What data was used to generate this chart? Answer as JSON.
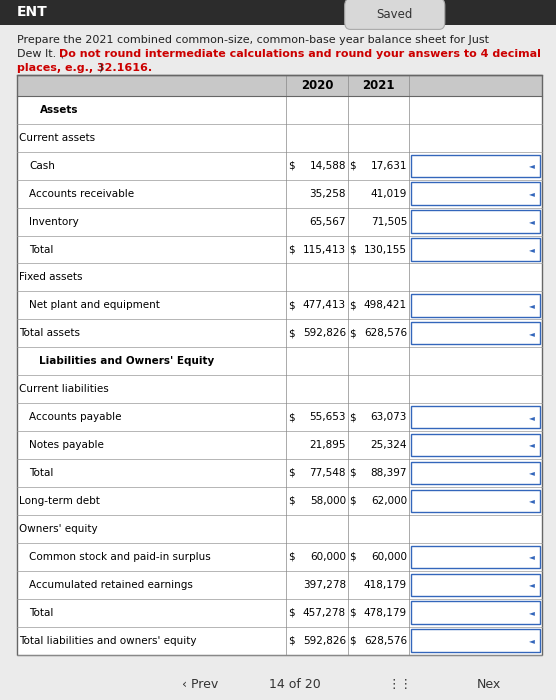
{
  "header_text": "ENT",
  "saved_text": "Saved",
  "bg_color": "#ebebeb",
  "table_bg": "#ffffff",
  "header_bg": "#c8c8c8",
  "col_2020": "2020",
  "col_2021": "2021",
  "rows": [
    {
      "label": "Assets",
      "indent": 2,
      "val2020": "",
      "val2021": "",
      "dollar2020": false,
      "dollar2021": false,
      "bold": true,
      "has_box": false
    },
    {
      "label": "Current assets",
      "indent": 0,
      "val2020": "",
      "val2021": "",
      "dollar2020": false,
      "dollar2021": false,
      "bold": false,
      "has_box": false
    },
    {
      "label": "Cash",
      "indent": 1,
      "val2020": "14,588",
      "val2021": "17,631",
      "dollar2020": true,
      "dollar2021": true,
      "bold": false,
      "has_box": true
    },
    {
      "label": "Accounts receivable",
      "indent": 1,
      "val2020": "35,258",
      "val2021": "41,019",
      "dollar2020": false,
      "dollar2021": false,
      "bold": false,
      "has_box": true
    },
    {
      "label": "Inventory",
      "indent": 1,
      "val2020": "65,567",
      "val2021": "71,505",
      "dollar2020": false,
      "dollar2021": false,
      "bold": false,
      "has_box": true
    },
    {
      "label": "Total",
      "indent": 1,
      "val2020": "115,413",
      "val2021": "130,155",
      "dollar2020": true,
      "dollar2021": true,
      "bold": false,
      "has_box": true
    },
    {
      "label": "Fixed assets",
      "indent": 0,
      "val2020": "",
      "val2021": "",
      "dollar2020": false,
      "dollar2021": false,
      "bold": false,
      "has_box": false
    },
    {
      "label": "Net plant and equipment",
      "indent": 1,
      "val2020": "477,413",
      "val2021": "498,421",
      "dollar2020": true,
      "dollar2021": true,
      "bold": false,
      "has_box": true
    },
    {
      "label": "Total assets",
      "indent": 0,
      "val2020": "592,826",
      "val2021": "628,576",
      "dollar2020": true,
      "dollar2021": true,
      "bold": false,
      "has_box": true
    },
    {
      "label": "Liabilities and Owners' Equity",
      "indent": 2,
      "val2020": "",
      "val2021": "",
      "dollar2020": false,
      "dollar2021": false,
      "bold": true,
      "has_box": false
    },
    {
      "label": "Current liabilities",
      "indent": 0,
      "val2020": "",
      "val2021": "",
      "dollar2020": false,
      "dollar2021": false,
      "bold": false,
      "has_box": false
    },
    {
      "label": "Accounts payable",
      "indent": 1,
      "val2020": "55,653",
      "val2021": "63,073",
      "dollar2020": true,
      "dollar2021": true,
      "bold": false,
      "has_box": true
    },
    {
      "label": "Notes payable",
      "indent": 1,
      "val2020": "21,895",
      "val2021": "25,324",
      "dollar2020": false,
      "dollar2021": false,
      "bold": false,
      "has_box": true
    },
    {
      "label": "Total",
      "indent": 1,
      "val2020": "77,548",
      "val2021": "88,397",
      "dollar2020": true,
      "dollar2021": true,
      "bold": false,
      "has_box": true
    },
    {
      "label": "Long-term debt",
      "indent": 0,
      "val2020": "58,000",
      "val2021": "62,000",
      "dollar2020": true,
      "dollar2021": true,
      "bold": false,
      "has_box": true
    },
    {
      "label": "Owners' equity",
      "indent": 0,
      "val2020": "",
      "val2021": "",
      "dollar2020": false,
      "dollar2021": false,
      "bold": false,
      "has_box": false
    },
    {
      "label": "Common stock and paid-in surplus",
      "indent": 1,
      "val2020": "60,000",
      "val2021": "60,000",
      "dollar2020": true,
      "dollar2021": true,
      "bold": false,
      "has_box": true
    },
    {
      "label": "Accumulated retained earnings",
      "indent": 1,
      "val2020": "397,278",
      "val2021": "418,179",
      "dollar2020": false,
      "dollar2021": false,
      "bold": false,
      "has_box": true
    },
    {
      "label": "Total",
      "indent": 1,
      "val2020": "457,278",
      "val2021": "478,179",
      "dollar2020": true,
      "dollar2021": true,
      "bold": false,
      "has_box": true
    },
    {
      "label": "Total liabilities and owners' equity",
      "indent": 0,
      "val2020": "592,826",
      "val2021": "628,576",
      "dollar2020": true,
      "dollar2021": true,
      "bold": false,
      "has_box": true
    }
  ]
}
